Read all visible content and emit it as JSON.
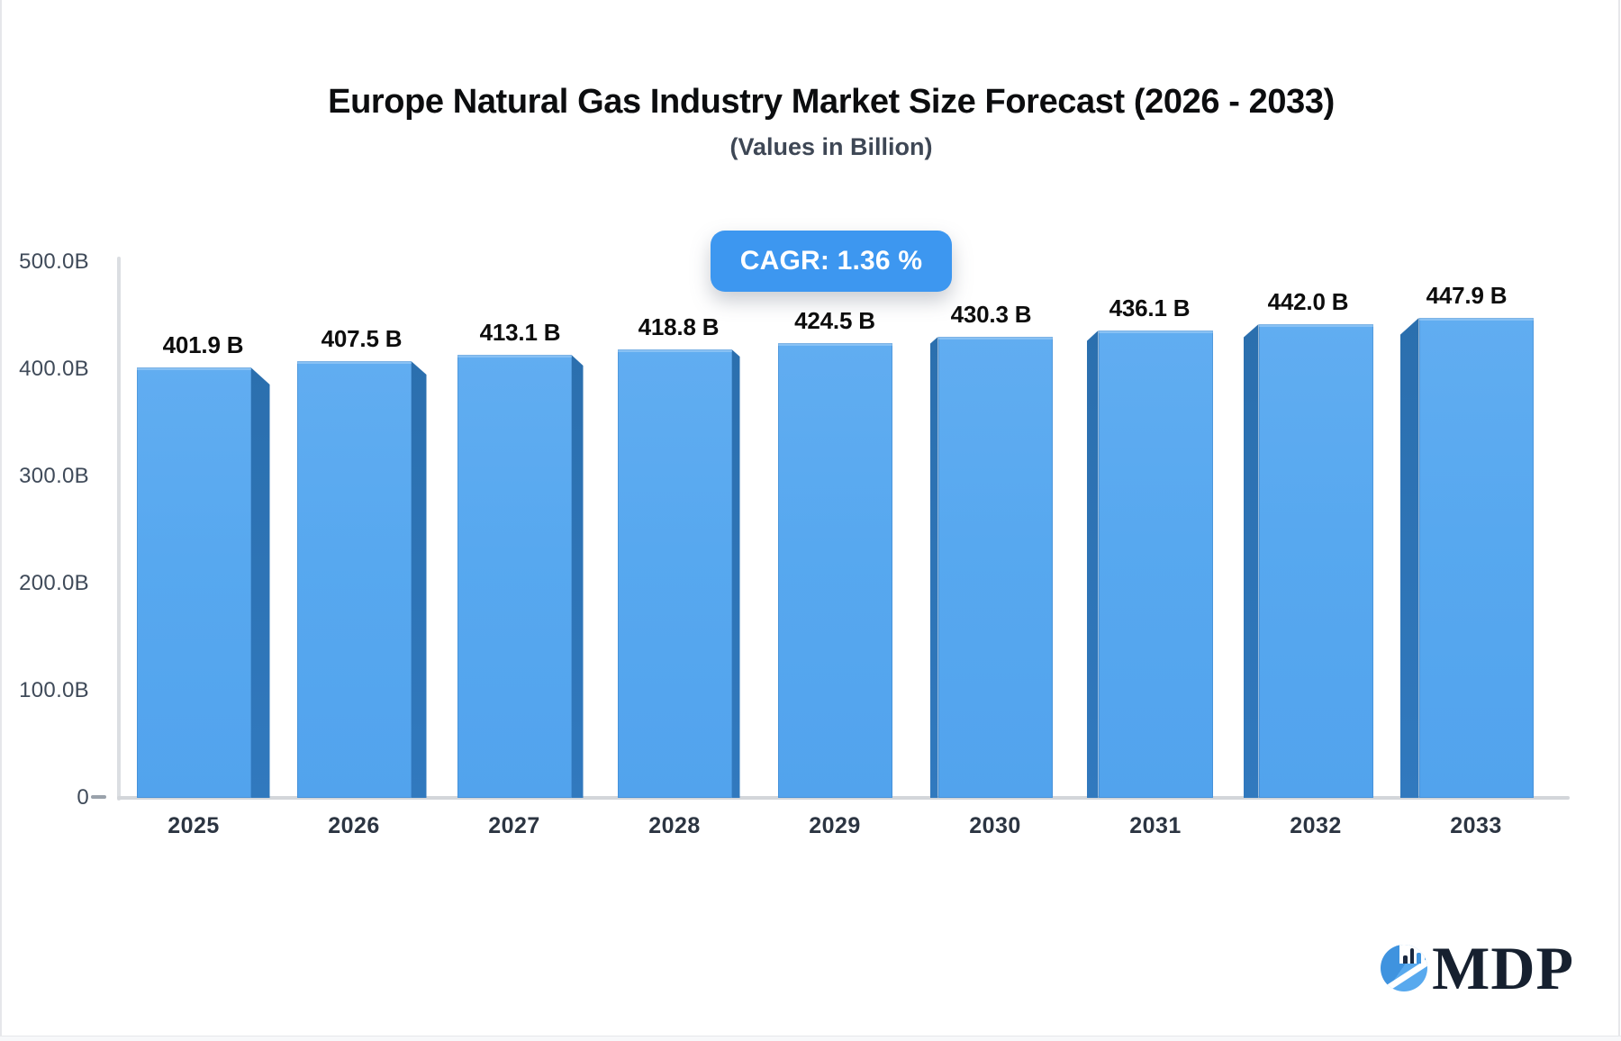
{
  "title": "Europe Natural Gas Industry Market Size Forecast (2026 - 2033)",
  "subtitle": "(Values in Billion)",
  "badge": {
    "label": "CAGR: 1.36 %"
  },
  "chart_data": {
    "type": "bar",
    "title": "Europe Natural Gas Industry Market Size Forecast (2026 - 2033)",
    "subtitle": "(Values in Billion)",
    "cagr": "1.36 %",
    "categories": [
      "2025",
      "2026",
      "2027",
      "2028",
      "2029",
      "2030",
      "2031",
      "2032",
      "2033"
    ],
    "values": [
      401.9,
      407.5,
      413.1,
      418.8,
      424.5,
      430.3,
      436.1,
      442.0,
      447.9
    ],
    "value_labels": [
      "401.9 B",
      "407.5 B",
      "413.1 B",
      "418.8 B",
      "424.5 B",
      "430.3 B",
      "436.1 B",
      "442.0 B",
      "447.9 B"
    ],
    "xlabel": "",
    "ylabel": "",
    "ylim": [
      0,
      500
    ],
    "y_ticks": [
      {
        "label": "500.0B",
        "value": 500
      },
      {
        "label": "400.0B",
        "value": 400
      },
      {
        "label": "300.0B",
        "value": 300
      },
      {
        "label": "200.0B",
        "value": 200
      },
      {
        "label": "100.0B",
        "value": 100
      },
      {
        "label": "0",
        "value": 0
      }
    ],
    "grid": "off",
    "legend": "none",
    "colors": {
      "bar_front": "#55A6EE",
      "bar_side": "#2E74B5",
      "badge_background": "#3D97F0",
      "axis": "#D3D6DA",
      "value_label_text": "#0D0D0D",
      "tick_text": "#3F4A59"
    }
  },
  "logo": {
    "text": "MDP",
    "icon": "pie-chart-icon"
  }
}
